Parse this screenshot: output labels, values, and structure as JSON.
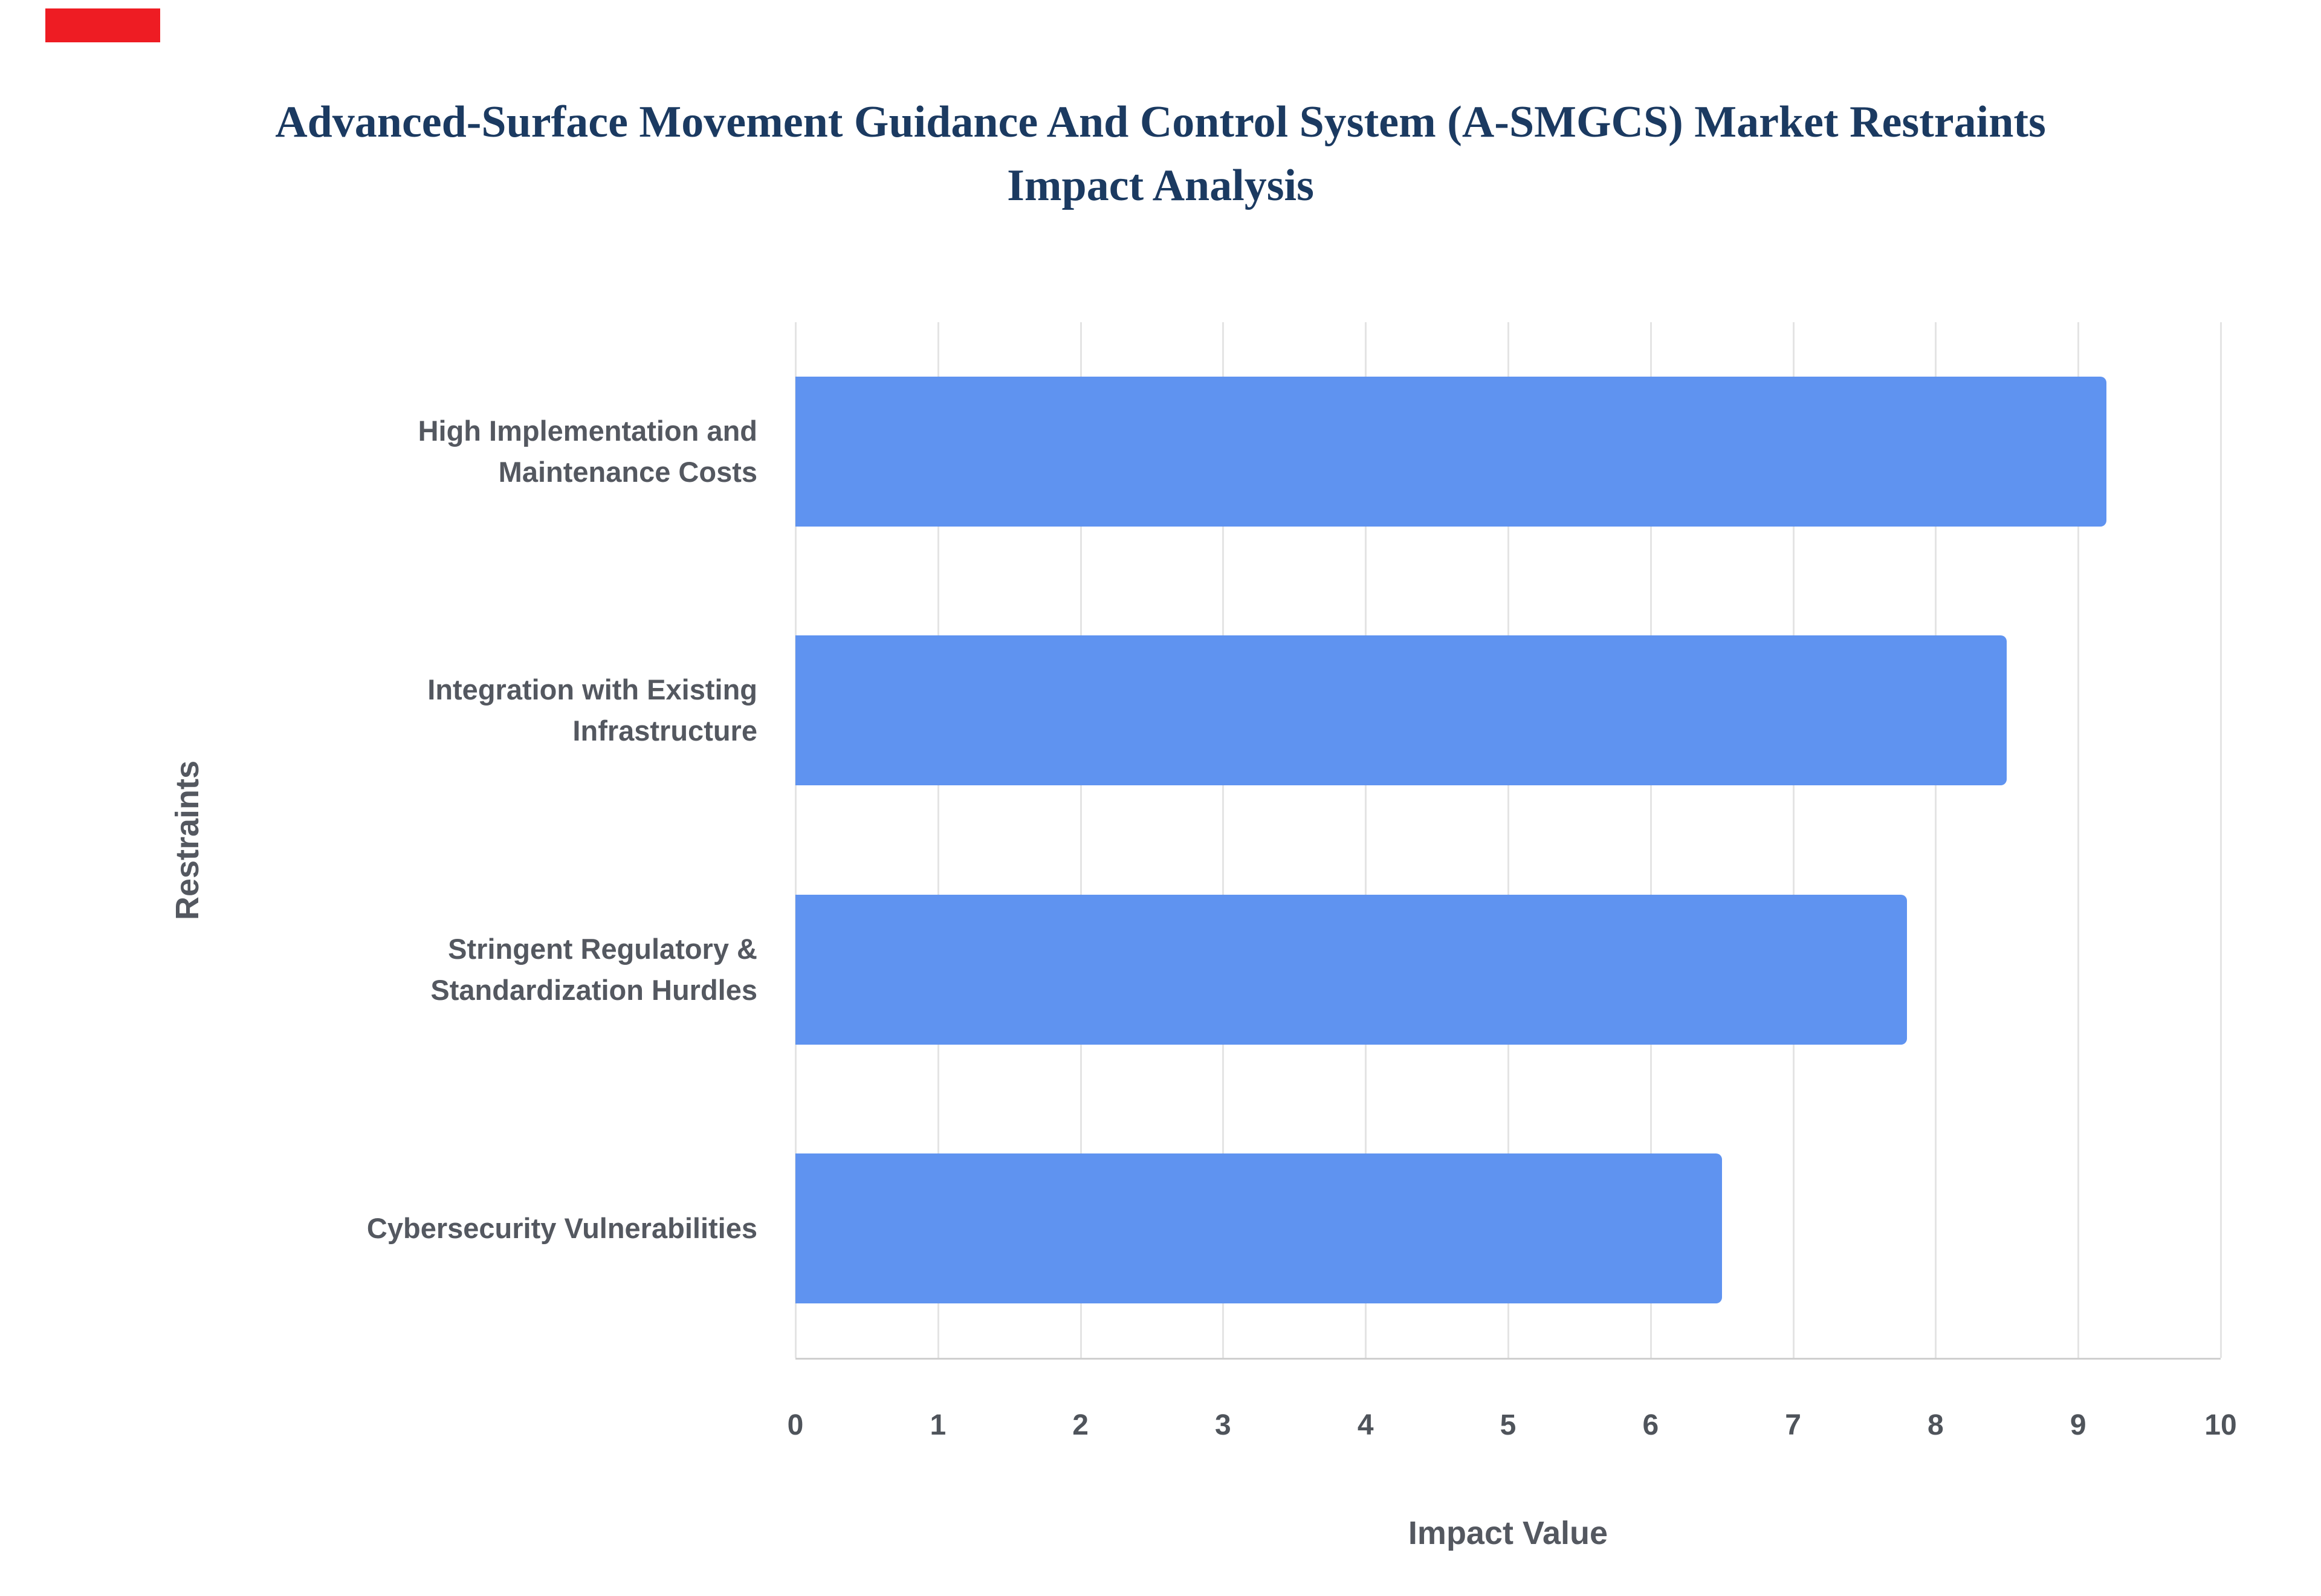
{
  "page": {
    "background_color": "#ffffff",
    "flag_color": "#ee1c23"
  },
  "title": {
    "line1": "Advanced-Surface Movement Guidance And Control System (A-SMGCS) Market Restraints",
    "line2": "Impact Analysis",
    "color": "#1b3a61"
  },
  "chart_data": {
    "type": "bar",
    "orientation": "horizontal",
    "title": "Advanced-Surface Movement Guidance And Control System (A-SMGCS) Market Restraints Impact Analysis",
    "categories": [
      "High Implementation and Maintenance Costs",
      "Integration with Existing Infrastructure",
      "Stringent Regulatory & Standardization Hurdles",
      "Cybersecurity Vulnerabilities"
    ],
    "values": [
      9.2,
      8.5,
      7.8,
      6.5
    ],
    "xlabel": "Impact Value",
    "ylabel": "Restraints",
    "xlim": [
      0,
      10
    ],
    "xticks": [
      0,
      1,
      2,
      3,
      4,
      5,
      6,
      7,
      8,
      9,
      10
    ],
    "bar_color": "#5f93f0",
    "grid": true,
    "gridline_color": "#e4e4e4",
    "axis_line_color": "#cfcfcf",
    "label_color": "#545860",
    "legend": false
  }
}
